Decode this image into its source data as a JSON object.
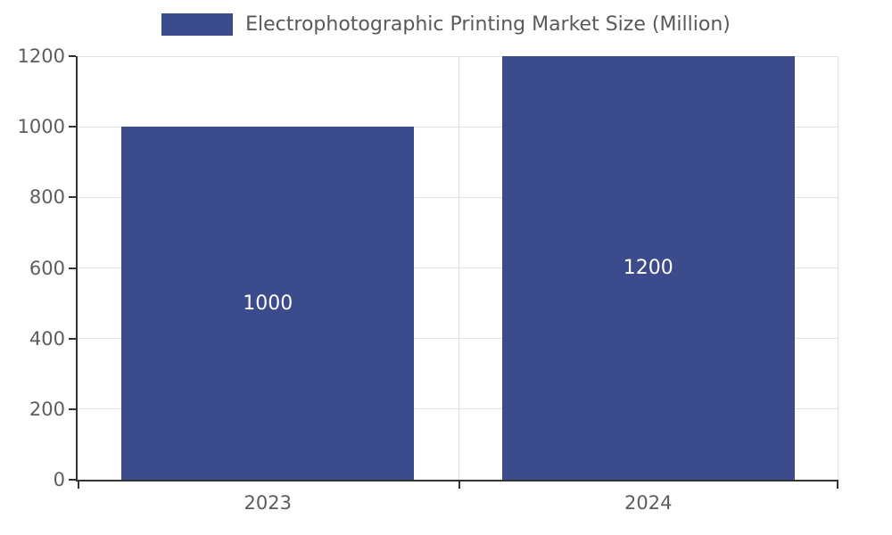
{
  "chart_data": {
    "type": "bar",
    "title": "Electrophotographic Printing Market Size (Million)",
    "legend": {
      "position": "top",
      "entries": [
        "Electrophotographic Printing Market Size (Million)"
      ]
    },
    "categories": [
      "2023",
      "2024"
    ],
    "values": [
      1000,
      1200
    ],
    "value_labels": [
      "1000",
      "1200"
    ],
    "xlabel": "",
    "ylabel": "",
    "ylim": [
      0,
      1200
    ],
    "yticks": [
      0,
      200,
      400,
      600,
      800,
      1000,
      1200
    ],
    "grid": true,
    "colors": {
      "bar": "#3b4b8c",
      "bar_value_label": "#ffffff",
      "axis_line": "#333333",
      "gridline": "#e3e3e3",
      "tick_label": "#5d5d5d",
      "legend_text": "#595959",
      "background": "#ffffff"
    }
  }
}
